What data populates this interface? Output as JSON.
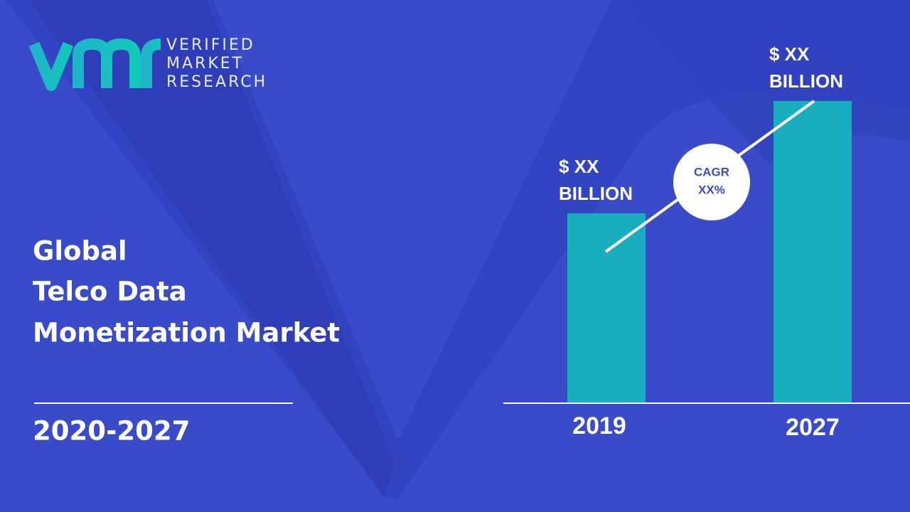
{
  "logo": {
    "lines": [
      "VERIFIED",
      "MARKET",
      "RESEARCH"
    ]
  },
  "title": [
    "Global",
    "Telco Data",
    "Monetization Market"
  ],
  "period": "2020-2027",
  "bars": [
    {
      "label": "2019",
      "value_label": [
        "$ XX",
        "BILLION"
      ]
    },
    {
      "label": "2027",
      "value_label": [
        "$ XX",
        "BILLION"
      ]
    }
  ],
  "cagr": [
    "CAGR",
    "XX%"
  ]
}
